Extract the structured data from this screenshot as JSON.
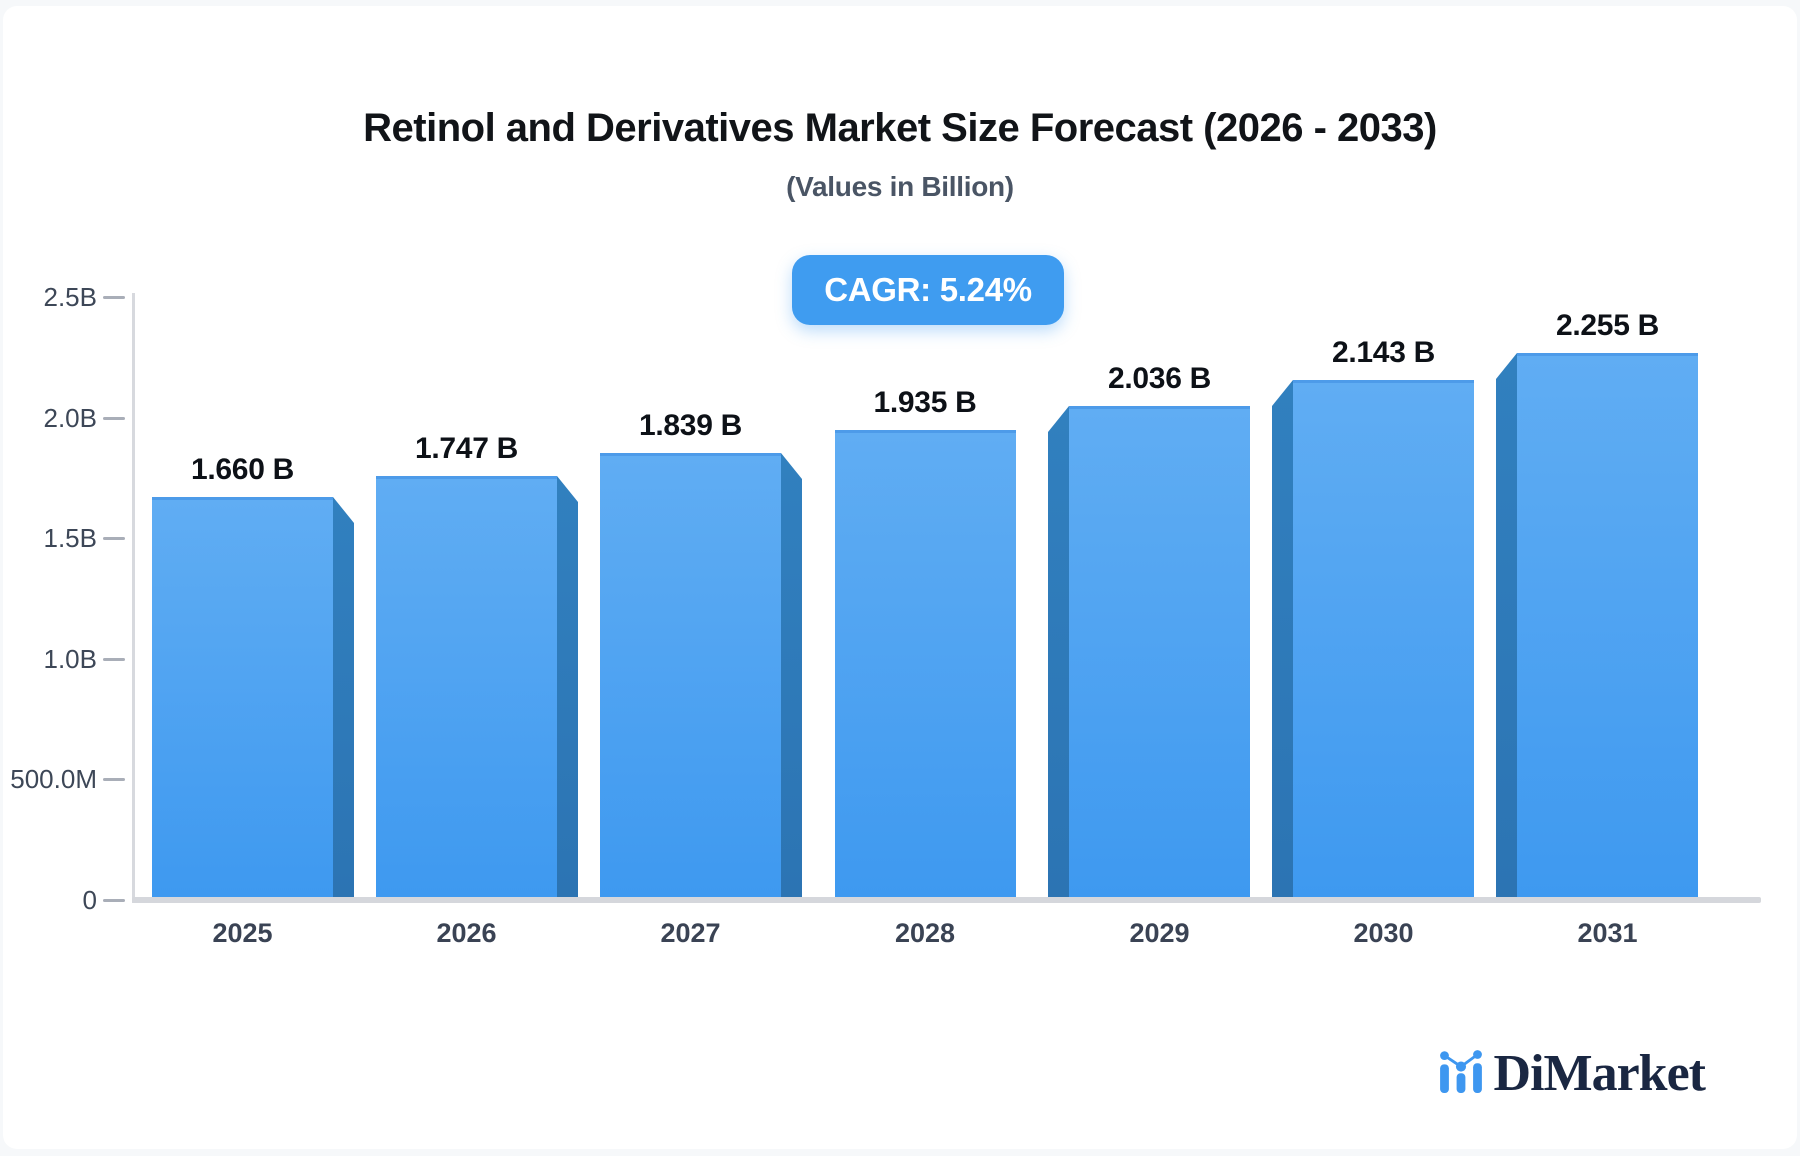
{
  "header": {
    "title": "Retinol and Derivatives Market Size Forecast (2026 - 2033)",
    "subtitle": "(Values in Billion)"
  },
  "badge": {
    "label": "CAGR: 5.24%"
  },
  "logo": {
    "name": "DiMarket",
    "icon": "mini-bar-chart-with-trendline-icon"
  },
  "colors": {
    "accent": "#3f9cf0",
    "bar_face_top": "#60adf3",
    "bar_face_bottom": "#3e99f0",
    "bar_face_edge": "#4d9be9",
    "bar_side_top": "#3180bf",
    "bar_side_bottom": "#2c74b3",
    "axis_line": "#d5d7dc",
    "tick_dash": "#a9aeb8",
    "axis_text": "#3d4757",
    "value_text": "#0d1117",
    "logo_blue": "#3e97f0",
    "logo_navy": "#1a2742"
  },
  "chart_data": {
    "type": "bar",
    "title": "Retinol and Derivatives Market Size Forecast (2026 - 2033)",
    "subtitle": "(Values in Billion)",
    "annotation": "CAGR: 5.24%",
    "categories": [
      "2025",
      "2026",
      "2027",
      "2028",
      "2029",
      "2030",
      "2031"
    ],
    "values": [
      1.66,
      1.747,
      1.839,
      1.935,
      2.036,
      2.143,
      2.255
    ],
    "value_labels": [
      "1.660 B",
      "1.747 B",
      "1.839 B",
      "1.935 B",
      "2.036 B",
      "2.143 B",
      "2.255 B"
    ],
    "y_ticks": [
      "0",
      "500.0M",
      "1.0B",
      "1.5B",
      "2.0B",
      "2.5B"
    ],
    "y_tick_values": [
      0,
      0.5,
      1.0,
      1.5,
      2.0,
      2.5
    ],
    "ylim": [
      0,
      2.5
    ],
    "xlabel": "",
    "ylabel": "",
    "grid": "off",
    "legend": "none",
    "bar_style": "3d-extruded, perspective toward center bar"
  }
}
